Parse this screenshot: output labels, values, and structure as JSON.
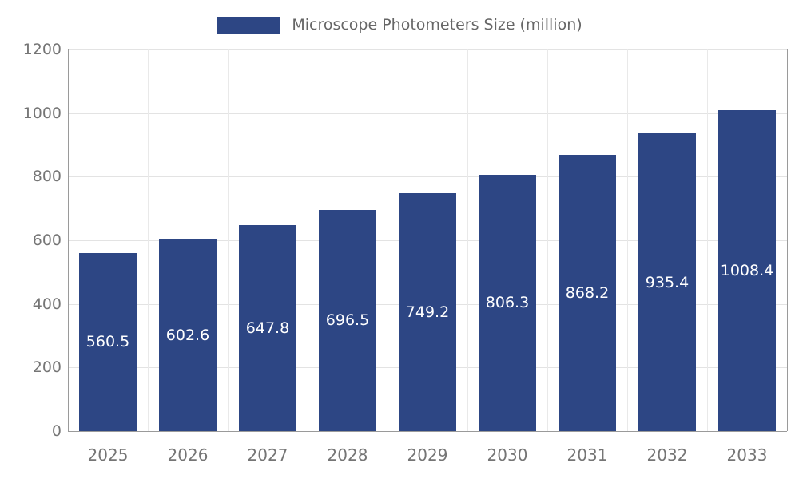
{
  "chart_data": {
    "type": "bar",
    "title": "Microscope Photometers Size (million)",
    "categories": [
      "2025",
      "2026",
      "2027",
      "2028",
      "2029",
      "2030",
      "2031",
      "2032",
      "2033"
    ],
    "values": [
      560.5,
      602.6,
      647.8,
      696.5,
      749.2,
      806.3,
      868.2,
      935.4,
      1008.4
    ],
    "value_labels": [
      "560.5",
      "602.6",
      "647.8",
      "696.5",
      "749.2",
      "806.3",
      "868.2",
      "935.4",
      "1008.4"
    ],
    "ytick_labels": [
      "0",
      "200",
      "400",
      "600",
      "800",
      "1000",
      "1200"
    ],
    "xlabel": "",
    "ylabel": "",
    "ylim": [
      0,
      1200
    ],
    "ytick_step": 200,
    "grid": true,
    "legend_position": "top"
  },
  "colors": {
    "bar": "#2d4684",
    "title": "#666666",
    "tick_label": "#757575",
    "grid_h": "#e3e3e3",
    "grid_v": "#e9e9e9",
    "spine": "#9a9a9a",
    "value_label": "#ffffff",
    "background": "#ffffff"
  }
}
